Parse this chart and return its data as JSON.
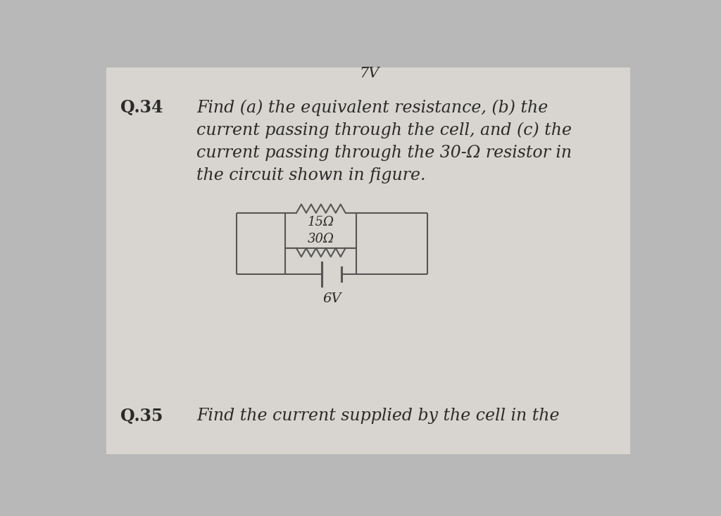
{
  "bg_color": "#b8b8b8",
  "paper_color": "#d8d5d0",
  "text_color": "#2a2a2a",
  "wire_color": "#555555",
  "title_top": "7V",
  "q34_label": "Q.34",
  "q34_text_line1": "Find (a) the equivalent resistance, (b) the",
  "q34_text_line2": "current passing through the cell, and (c) the",
  "q34_text_line3": "current passing through the 30-Ω resistor in",
  "q34_text_line4": "the circuit shown in figure.",
  "q35_label": "Q.35",
  "q35_text": "Find the current supplied by the cell in the",
  "resistor1_label": "15Ω",
  "resistor2_label": "30Ω",
  "battery_label": "6V",
  "font_size_text": 17,
  "font_size_circuit": 13
}
